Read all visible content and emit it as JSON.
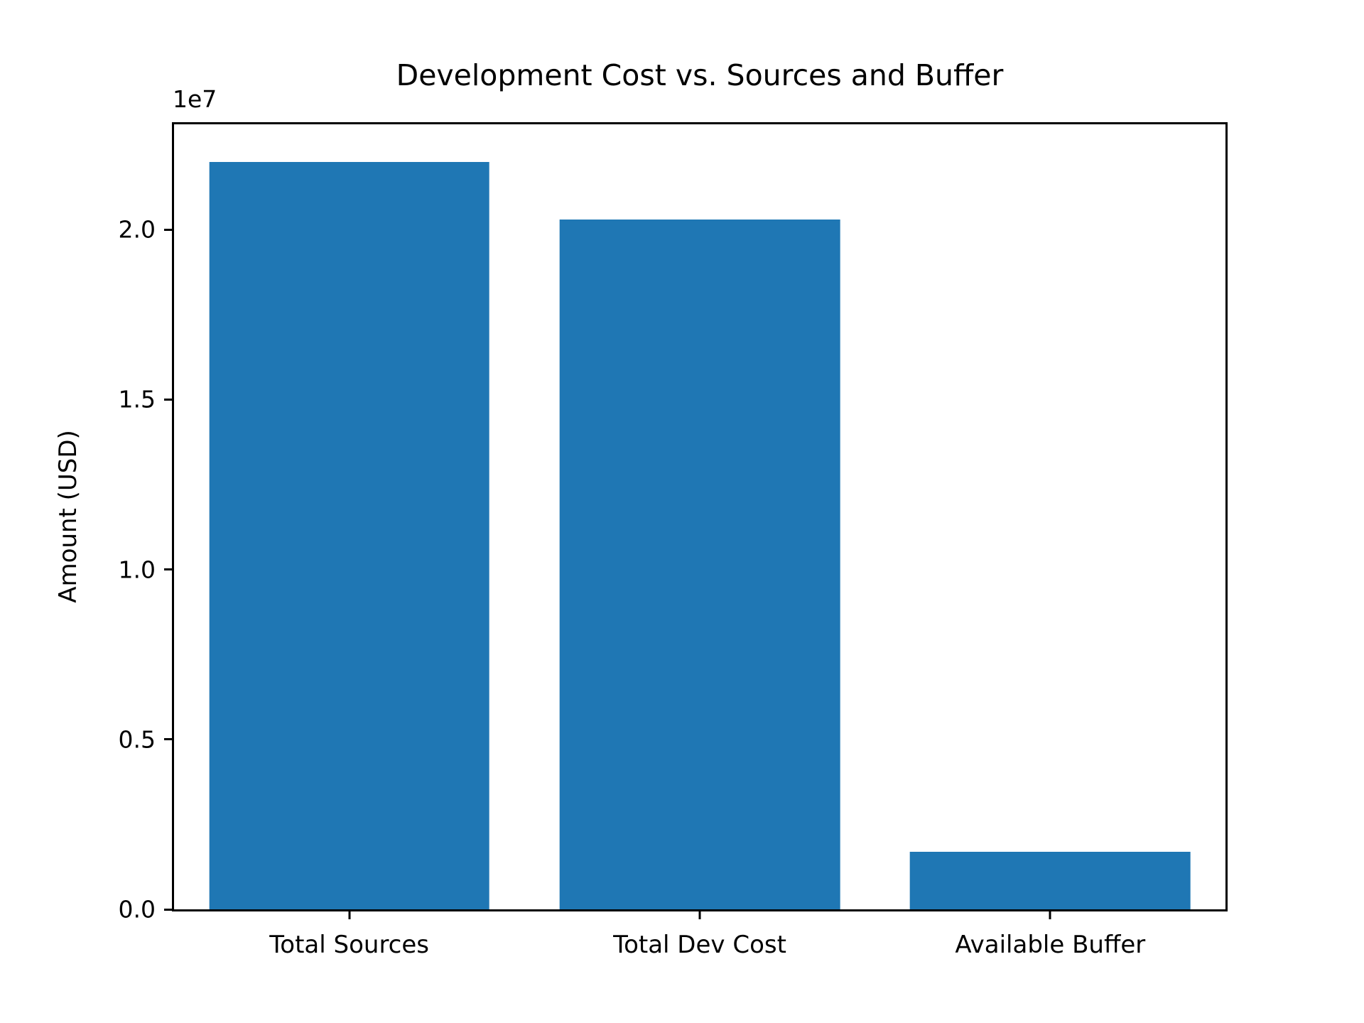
{
  "figure": {
    "background": "#ffffff"
  },
  "chart_data": {
    "type": "bar",
    "title": "Development Cost vs. Sources and Buffer",
    "categories": [
      "Total Sources",
      "Total Dev Cost",
      "Available Buffer"
    ],
    "values": [
      22000000,
      20300000,
      1700000
    ],
    "xlabel": "",
    "ylabel": "Amount (USD)",
    "ylim": [
      0,
      23100000
    ],
    "yticks": [
      {
        "value": 0,
        "label": "0.0"
      },
      {
        "value": 5000000,
        "label": "0.5"
      },
      {
        "value": 10000000,
        "label": "1.0"
      },
      {
        "value": 15000000,
        "label": "1.5"
      },
      {
        "value": 20000000,
        "label": "2.0"
      }
    ],
    "offset_text": "1e7",
    "bar_color": "#1f77b4",
    "bar_width_fraction": 0.8,
    "grid": false,
    "legend": null
  }
}
